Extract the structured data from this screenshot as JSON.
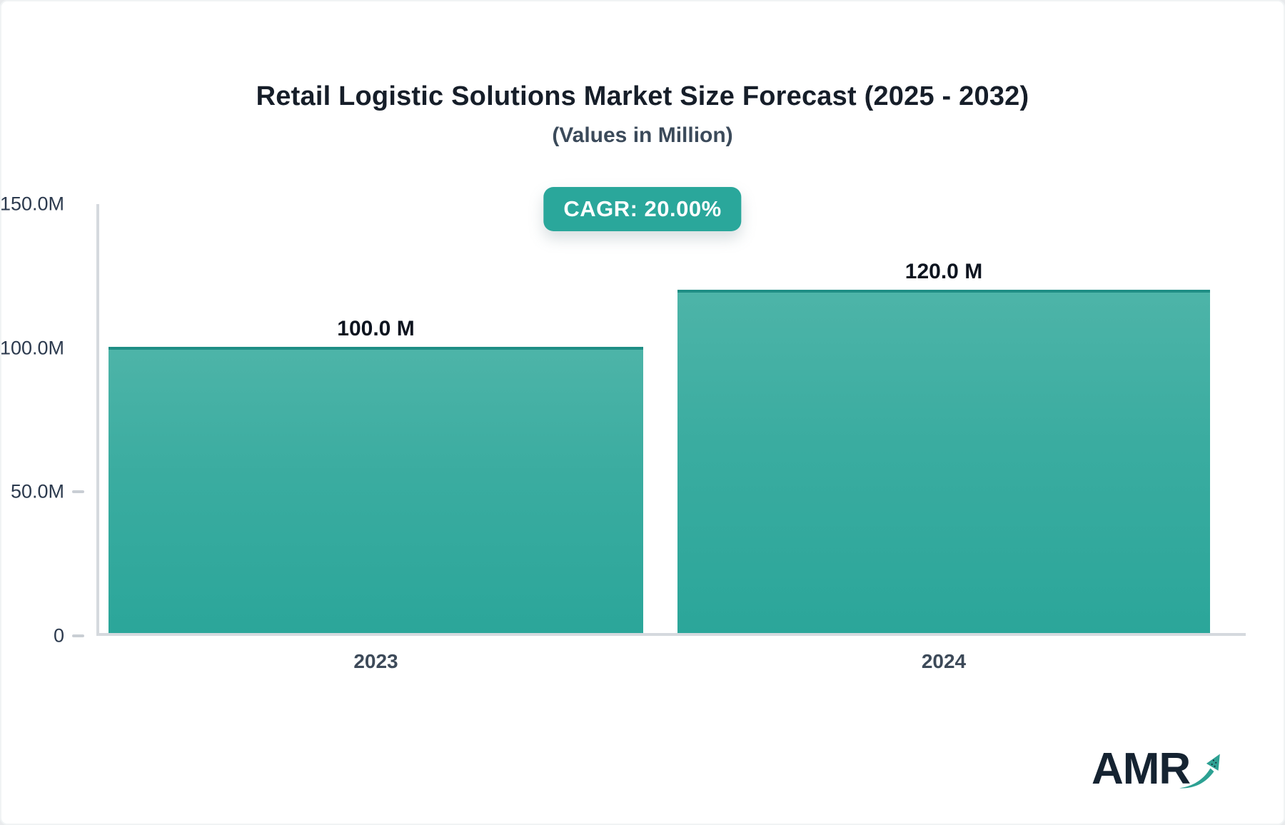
{
  "title": "Retail Logistic Solutions Market Size Forecast (2025 - 2032)",
  "subtitle": "(Values in Million)",
  "cagr_badge": "CAGR: 20.00%",
  "logo": {
    "text": "AMR",
    "icon": "growth-arrow-icon"
  },
  "colors": {
    "accent_teal": "#2aa79b",
    "bar_gradient_top": "#4db4a8",
    "bar_gradient_bottom": "#2ba69a",
    "bar_top_border": "#1f8e85",
    "axis_gray": "#d5d9de",
    "title_text": "#161e29",
    "logo_navy": "#152331"
  },
  "chart_data": {
    "type": "bar",
    "title": "Retail Logistic Solutions Market Size Forecast (2025 - 2032)",
    "subtitle": "(Values in Million)",
    "unit": "Million",
    "categories": [
      "2023",
      "2024"
    ],
    "values": [
      100,
      120
    ],
    "value_labels": [
      "100.0 M",
      "120.0 M"
    ],
    "cagr_percent": 20.0,
    "ylim": [
      0,
      150
    ],
    "yticks": [
      {
        "label": "150.0M",
        "value": 150,
        "dash": false
      },
      {
        "label": "100.0M",
        "value": 100,
        "dash": false
      },
      {
        "label": "50.0M",
        "value": 50,
        "dash": true
      },
      {
        "label": "0",
        "value": 0,
        "dash": true
      }
    ],
    "grid": false,
    "legend": false
  }
}
